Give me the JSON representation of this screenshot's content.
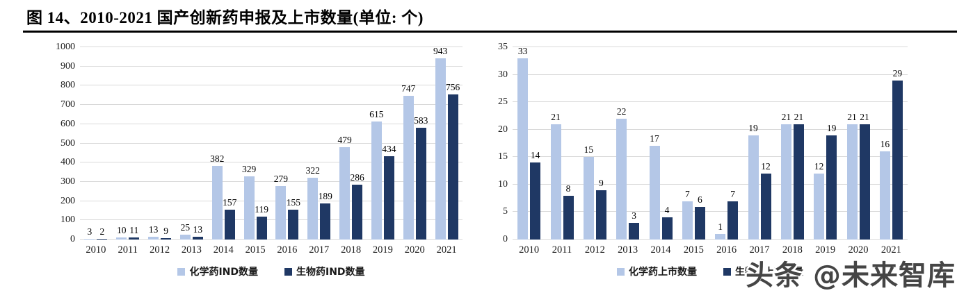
{
  "page": {
    "title": "图 14、2010-2021 国产创新药申报及上市数量(单位: 个)",
    "watermark": "头条 @未来智库"
  },
  "colors": {
    "series_light": "#B4C7E7",
    "series_dark": "#1F3864",
    "gridline": "#D9D9D9",
    "axis_text": "#1A1A1A",
    "title_text": "#000000",
    "title_rule": "#000000",
    "watermark_text": "#454545"
  },
  "chart_data": [
    {
      "type": "bar",
      "title": "",
      "xlabel": "",
      "ylabel": "",
      "categories": [
        "2010",
        "2011",
        "2012",
        "2013",
        "2014",
        "2015",
        "2016",
        "2017",
        "2018",
        "2019",
        "2020",
        "2021"
      ],
      "series": [
        {
          "name": "化学药IND数量",
          "color": "#B4C7E7",
          "values": [
            3,
            10,
            13,
            25,
            382,
            329,
            279,
            322,
            479,
            615,
            747,
            943
          ]
        },
        {
          "name": "生物药IND数量",
          "color": "#1F3864",
          "values": [
            2,
            11,
            9,
            13,
            157,
            119,
            155,
            189,
            286,
            434,
            583,
            756
          ]
        }
      ],
      "ylim": [
        0,
        1000
      ],
      "ytick_step": 100,
      "grid": true,
      "value_labels": true,
      "legend_position": "bottom"
    },
    {
      "type": "bar",
      "title": "",
      "xlabel": "",
      "ylabel": "",
      "categories": [
        "2010",
        "2011",
        "2012",
        "2013",
        "2014",
        "2015",
        "2016",
        "2017",
        "2018",
        "2019",
        "2020",
        "2021"
      ],
      "series": [
        {
          "name": "化学药上市数量",
          "color": "#B4C7E7",
          "values": [
            33,
            21,
            15,
            22,
            17,
            7,
            1,
            19,
            21,
            12,
            21,
            16
          ]
        },
        {
          "name": "生物药上市数量",
          "color": "#1F3864",
          "values": [
            14,
            8,
            9,
            3,
            4,
            6,
            7,
            12,
            21,
            19,
            21,
            29
          ]
        }
      ],
      "ylim": [
        0,
        35
      ],
      "ytick_step": 5,
      "grid": true,
      "value_labels": true,
      "legend_position": "bottom"
    }
  ]
}
